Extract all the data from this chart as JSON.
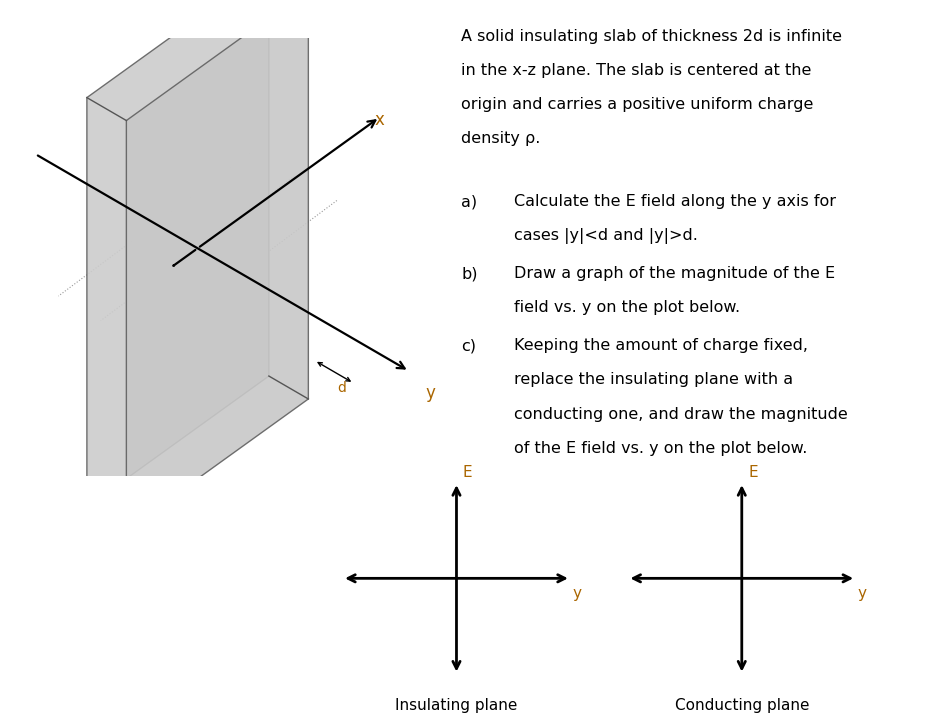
{
  "bg_color": "#ffffff",
  "text_color": "#000000",
  "label_color_axis": "#aa6600",
  "slab_face_color": "#cccccc",
  "slab_edge_color": "#555555",
  "description_line1": "A solid insulating slab of thickness 2d is infinite",
  "description_line2": "in the x-z plane. The slab is centered at the",
  "description_line3": "origin and carries a positive uniform charge",
  "description_line4": "density ρ.",
  "item_a_label": "a)",
  "item_a_text1": "Calculate the E field along the y axis for",
  "item_a_text2": "cases |y|<d and |y|>d.",
  "item_b_label": "b)",
  "item_b_text1": "Draw a graph of the magnitude of the E",
  "item_b_text2": "field vs. y on the plot below.",
  "item_c_label": "c)",
  "item_c_text1": "Keeping the amount of charge fixed,",
  "item_c_text2": "replace the insulating plane with a",
  "item_c_text3": "conducting one, and draw the magnitude",
  "item_c_text4": "of the E field vs. y on the plot below.",
  "label_insulating": "Insulating plane",
  "label_conducting": "Conducting plane"
}
